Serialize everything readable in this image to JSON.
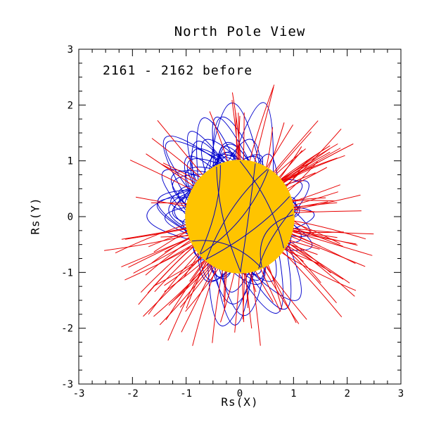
{
  "figure": {
    "kind": "solar coronal magnetic field line plot",
    "background": "#FFFFFF"
  },
  "chart_data": {
    "type": "line",
    "title": "North Pole View",
    "annotation": "2161 - 2162 before",
    "xlabel": "Rs(X)",
    "ylabel": "Rs(Y)",
    "xlim": [
      -3,
      3
    ],
    "ylim": [
      -3,
      3
    ],
    "xticks": [
      -3,
      -2,
      -1,
      0,
      1,
      2,
      3
    ],
    "yticks": [
      -3,
      -2,
      -1,
      0,
      1,
      2,
      3
    ],
    "grid": false,
    "legend": false,
    "frame_color": "#000000",
    "text_color": "#000000",
    "sun": {
      "center": [
        0,
        0
      ],
      "radius": 1.02,
      "color": "#FFC400"
    },
    "colors": {
      "open_field": "#E80000",
      "closed_field": "#0000CC"
    },
    "seed": 20161,
    "series": [
      {
        "name": "open-field-lines-right",
        "style": "open",
        "color": "#E80000",
        "angle_range": [
          -42,
          66
        ],
        "count": 58,
        "r_end": [
          1.35,
          2.62
        ],
        "drift": 9
      },
      {
        "name": "open-field-lines-bottom-left",
        "style": "open",
        "color": "#E80000",
        "angle_range": [
          188,
          262
        ],
        "count": 40,
        "r_end": [
          1.4,
          2.62
        ],
        "drift": 8
      },
      {
        "name": "open-field-lines-bottom",
        "style": "open",
        "color": "#E80000",
        "angle_range": [
          262,
          302
        ],
        "count": 14,
        "r_end": [
          1.3,
          2.35
        ],
        "drift": 7
      },
      {
        "name": "open-field-lines-top",
        "style": "open",
        "color": "#E80000",
        "angle_range": [
          74,
          108
        ],
        "count": 9,
        "r_end": [
          1.6,
          2.5
        ],
        "drift": 6
      },
      {
        "name": "open-field-lines-upper-left",
        "style": "open",
        "color": "#E80000",
        "angle_range": [
          126,
          170
        ],
        "count": 8,
        "r_end": [
          1.5,
          2.45
        ],
        "drift": 6
      },
      {
        "name": "closed-loops-upper-left",
        "style": "closed",
        "color": "#0000CC",
        "angle_range": [
          95,
          178
        ],
        "count": 24,
        "apex": [
          1.12,
          2.2
        ],
        "sep": [
          16,
          55
        ]
      },
      {
        "name": "closed-loops-top",
        "style": "closed",
        "color": "#0000CC",
        "angle_range": [
          52,
          112
        ],
        "count": 12,
        "apex": [
          1.1,
          2.25
        ],
        "sep": [
          14,
          48
        ]
      },
      {
        "name": "closed-loops-bottom",
        "style": "closed",
        "color": "#0000CC",
        "angle_range": [
          232,
          308
        ],
        "count": 16,
        "apex": [
          1.08,
          2.0
        ],
        "sep": [
          14,
          50
        ]
      },
      {
        "name": "closed-loops-right",
        "style": "closed",
        "color": "#0000CC",
        "angle_range": [
          -38,
          38
        ],
        "count": 10,
        "apex": [
          1.05,
          1.5
        ],
        "sep": [
          10,
          30
        ]
      },
      {
        "name": "closed-loops-left",
        "style": "closed",
        "color": "#0000CC",
        "angle_range": [
          150,
          232
        ],
        "count": 8,
        "apex": [
          1.05,
          1.65
        ],
        "sep": [
          12,
          36
        ]
      },
      {
        "name": "on-disk-loops",
        "style": "disk",
        "color": "#0000BB",
        "angle_range": [
          0,
          360
        ],
        "count": 10,
        "apex": [
          0.15,
          0.75
        ]
      }
    ]
  }
}
